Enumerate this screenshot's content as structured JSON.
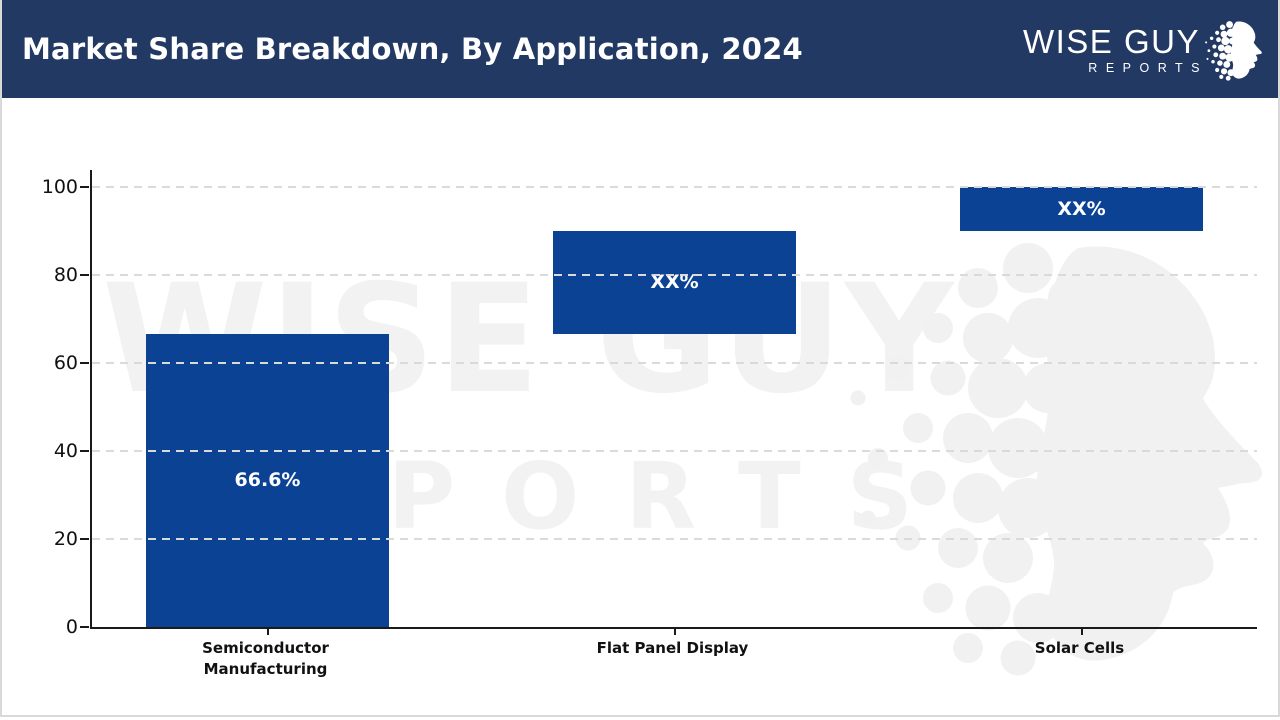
{
  "header": {
    "title": "Market Share Breakdown, By Application, 2024",
    "logo": {
      "line1": "WISE GUY",
      "line2": "REPORTS"
    }
  },
  "watermark": {
    "line1": "WISE GUY",
    "line2": "REPORTS"
  },
  "chart_data": {
    "type": "bar",
    "subtype": "floating-segment-waterfall",
    "title": "Market Share Breakdown, By Application, 2024",
    "categories": [
      "Semiconductor\nManufacturing",
      "Flat Panel Display",
      "Solar Cells"
    ],
    "segments": [
      {
        "category": "Semiconductor Manufacturing",
        "start": 0,
        "end": 66.6,
        "label": "66.6%"
      },
      {
        "category": "Flat Panel Display",
        "start": 66.6,
        "end": 90,
        "label": "XX%"
      },
      {
        "category": "Solar Cells",
        "start": 90,
        "end": 100,
        "label": "XX%"
      }
    ],
    "ylim": [
      0,
      100
    ],
    "yticks": [
      0,
      20,
      40,
      60,
      80,
      100
    ],
    "xlabel": "",
    "ylabel": "",
    "grid": {
      "axis": "y",
      "style": "dashed",
      "color": "#dadada",
      "drawn_over_bars": true
    },
    "legend": "none",
    "bar_color": "#0b4294",
    "bar_label_color": "#ffffff"
  },
  "colors": {
    "header_bg": "#223963",
    "bar": "#0b4294",
    "axis": "#1a1a1a",
    "grid": "#dadada",
    "watermark": "#f2f2f2",
    "frame_border": "#d9d9d9"
  }
}
